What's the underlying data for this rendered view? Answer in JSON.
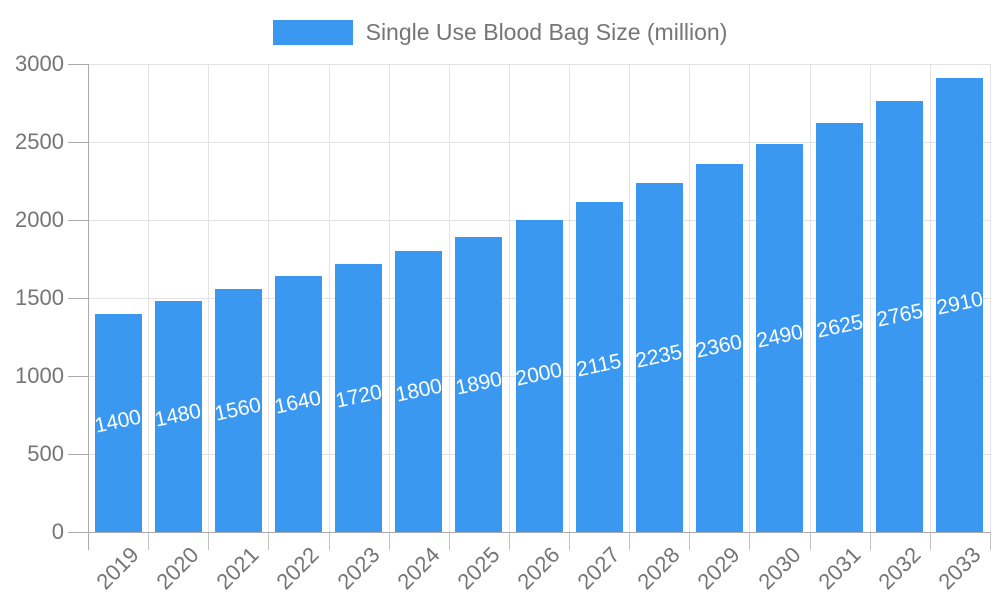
{
  "colors": {
    "bar": "#3B98F0",
    "grid": "#E3E3E3",
    "axis": "#ABABAB",
    "tick": "#C2C2C2",
    "tick_label": "#757575",
    "value_label": "#FFFFFF",
    "background": "#FFFFFF"
  },
  "chart_data": {
    "type": "bar",
    "title": "",
    "legend_position": "top",
    "grid": true,
    "categories": [
      "2019",
      "2020",
      "2021",
      "2022",
      "2023",
      "2024",
      "2025",
      "2026",
      "2027",
      "2028",
      "2029",
      "2030",
      "2031",
      "2032",
      "2033"
    ],
    "series": [
      {
        "name": "Single Use Blood Bag Size (million)",
        "values": [
          1400,
          1480,
          1560,
          1640,
          1720,
          1800,
          1890,
          2000,
          2115,
          2235,
          2360,
          2490,
          2625,
          2765,
          2910
        ]
      }
    ],
    "ylim": [
      0,
      3000
    ],
    "yticks": [
      0,
      500,
      1000,
      1500,
      2000,
      2500,
      3000
    ],
    "xlabel_rotation": -45,
    "value_label_rotation": -12,
    "value_label_position": "inside-center"
  }
}
